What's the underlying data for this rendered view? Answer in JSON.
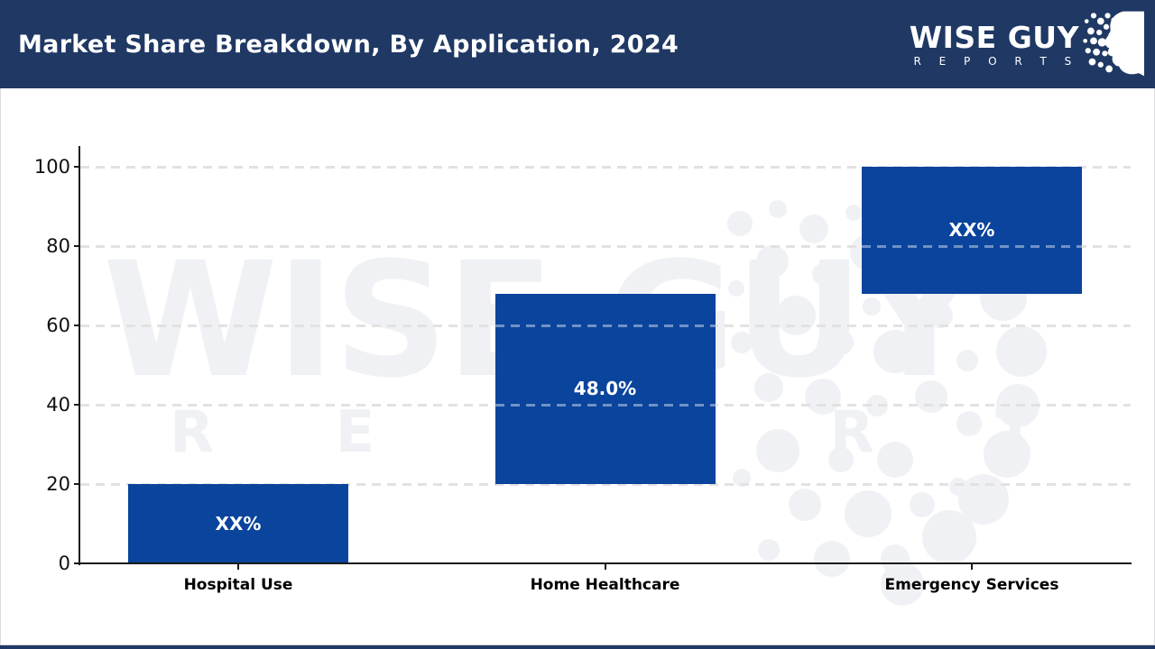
{
  "header": {
    "title": "Market Share Breakdown, By Application, 2024",
    "logo": {
      "line1": "WISE GUY",
      "line2": "R E P O R T S"
    }
  },
  "watermark": {
    "line1": "WISE GUY",
    "line2": "R E P O R T S"
  },
  "chart_data": {
    "type": "bar",
    "subtype": "floating-segment-breakdown",
    "title": "Market Share Breakdown, By Application, 2024",
    "categories": [
      "Hospital Use",
      "Home Healthcare",
      "Emergency Services"
    ],
    "bars": [
      {
        "category": "Hospital Use",
        "start": 0,
        "end": 20,
        "label": "XX%"
      },
      {
        "category": "Home Healthcare",
        "start": 20,
        "end": 68,
        "label": "48.0%"
      },
      {
        "category": "Emergency Services",
        "start": 68,
        "end": 100,
        "label": "XX%"
      }
    ],
    "yticks": [
      0,
      20,
      40,
      60,
      80,
      100
    ],
    "ylim": [
      0,
      105
    ],
    "xlabel": "",
    "ylabel": "",
    "legend": null,
    "grid": {
      "axis": "y",
      "style": "dashed",
      "drawn_over_bars": true
    },
    "colors": {
      "bar": "#0a449c",
      "header_bg": "#1f3864",
      "gridline": "#e2e2e2",
      "axis": "#1a1a1a",
      "bar_label": "#ffffff",
      "watermark": "#f0f1f4"
    }
  }
}
